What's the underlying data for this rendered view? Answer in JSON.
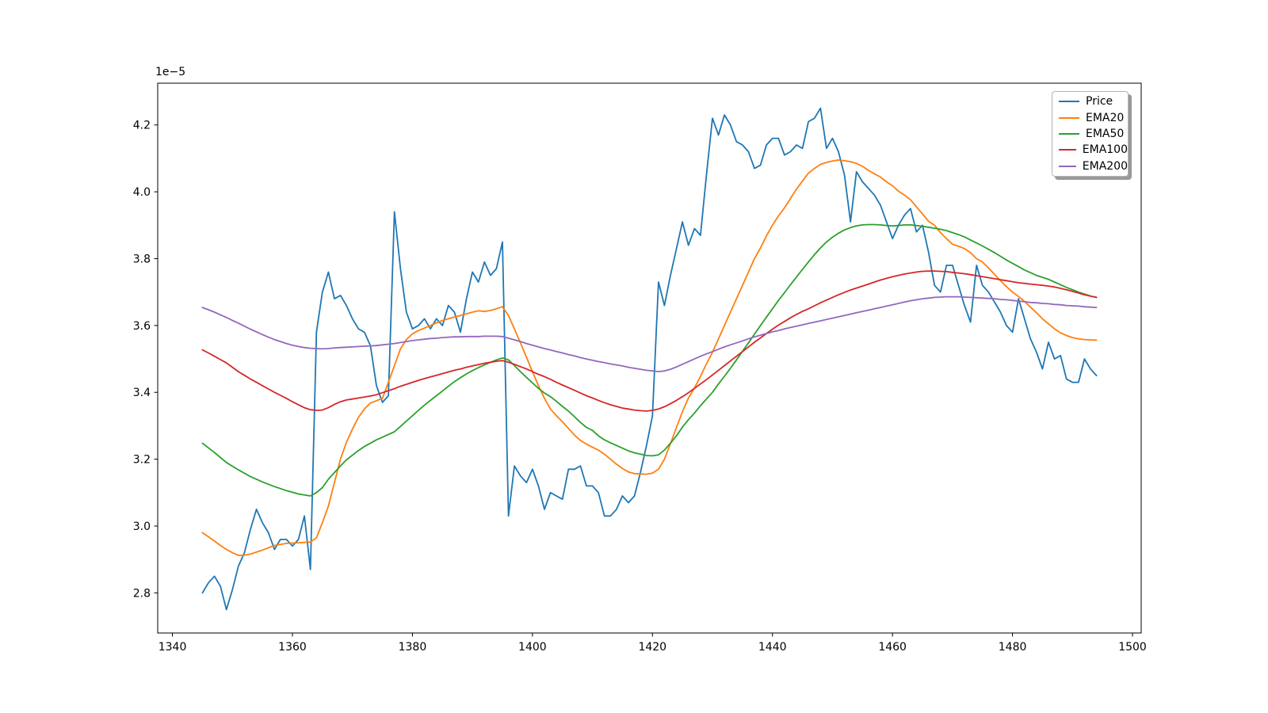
{
  "window": {
    "background": "#ffffff"
  },
  "chart_data": {
    "type": "line",
    "title": "",
    "xlabel": "",
    "ylabel": "",
    "grid": false,
    "x_axis": {
      "ticks": [
        1340,
        1360,
        1380,
        1400,
        1420,
        1440,
        1460,
        1480,
        1500
      ],
      "range": [
        1337.55,
        1501.45
      ]
    },
    "y_axis": {
      "ticks": [
        2.8,
        3.0,
        3.2,
        3.4,
        3.6,
        3.8,
        4.0,
        4.2
      ],
      "range": [
        2.68,
        4.325
      ],
      "offset_label": "1e−5"
    },
    "legend": {
      "position": "upper right",
      "entries": [
        "Price",
        "EMA20",
        "EMA50",
        "EMA100",
        "EMA200"
      ]
    },
    "x_start": 1345,
    "x_step": 1,
    "series": [
      {
        "name": "Price",
        "color": "#1f77b4",
        "values": [
          2.8,
          2.83,
          2.85,
          2.82,
          2.75,
          2.81,
          2.88,
          2.92,
          2.99,
          3.05,
          3.01,
          2.98,
          2.93,
          2.96,
          2.96,
          2.94,
          2.96,
          3.03,
          2.87,
          3.58,
          3.7,
          3.76,
          3.68,
          3.69,
          3.66,
          3.62,
          3.59,
          3.58,
          3.54,
          3.42,
          3.37,
          3.39,
          3.94,
          3.77,
          3.64,
          3.59,
          3.6,
          3.62,
          3.59,
          3.62,
          3.6,
          3.66,
          3.64,
          3.58,
          3.68,
          3.76,
          3.73,
          3.79,
          3.75,
          3.77,
          3.85,
          3.03,
          3.18,
          3.15,
          3.13,
          3.17,
          3.12,
          3.05,
          3.1,
          3.09,
          3.08,
          3.17,
          3.17,
          3.18,
          3.12,
          3.12,
          3.1,
          3.03,
          3.03,
          3.05,
          3.09,
          3.07,
          3.09,
          3.16,
          3.24,
          3.33,
          3.73,
          3.66,
          3.75,
          3.83,
          3.91,
          3.84,
          3.89,
          3.87,
          4.05,
          4.22,
          4.17,
          4.23,
          4.2,
          4.15,
          4.14,
          4.12,
          4.07,
          4.08,
          4.14,
          4.16,
          4.16,
          4.11,
          4.12,
          4.14,
          4.13,
          4.21,
          4.22,
          4.25,
          4.13,
          4.16,
          4.12,
          4.05,
          3.91,
          4.06,
          4.03,
          4.01,
          3.99,
          3.96,
          3.91,
          3.86,
          3.9,
          3.93,
          3.95,
          3.88,
          3.9,
          3.82,
          3.72,
          3.7,
          3.78,
          3.78,
          3.72,
          3.66,
          3.61,
          3.78,
          3.72,
          3.7,
          3.67,
          3.64,
          3.6,
          3.58,
          3.68,
          3.62,
          3.56,
          3.52,
          3.47,
          3.55,
          3.5,
          3.51,
          3.44,
          3.43,
          3.43,
          3.5,
          3.47,
          3.45
        ]
      },
      {
        "name": "EMA20",
        "color": "#ff7f0e",
        "values": [
          2.98,
          2.968,
          2.955,
          2.942,
          2.93,
          2.92,
          2.912,
          2.913,
          2.916,
          2.922,
          2.928,
          2.935,
          2.942,
          2.945,
          2.948,
          2.949,
          2.95,
          2.951,
          2.952,
          2.965,
          3.01,
          3.06,
          3.13,
          3.2,
          3.25,
          3.29,
          3.325,
          3.35,
          3.368,
          3.375,
          3.382,
          3.43,
          3.48,
          3.53,
          3.558,
          3.575,
          3.585,
          3.592,
          3.6,
          3.608,
          3.615,
          3.62,
          3.625,
          3.63,
          3.635,
          3.64,
          3.644,
          3.642,
          3.645,
          3.65,
          3.656,
          3.63,
          3.59,
          3.548,
          3.505,
          3.462,
          3.42,
          3.382,
          3.35,
          3.33,
          3.312,
          3.292,
          3.272,
          3.256,
          3.245,
          3.236,
          3.227,
          3.215,
          3.2,
          3.185,
          3.172,
          3.162,
          3.157,
          3.156,
          3.155,
          3.158,
          3.17,
          3.2,
          3.246,
          3.295,
          3.342,
          3.383,
          3.413,
          3.448,
          3.485,
          3.52,
          3.56,
          3.6,
          3.64,
          3.68,
          3.72,
          3.76,
          3.8,
          3.832,
          3.868,
          3.9,
          3.928,
          3.952,
          3.98,
          4.008,
          4.032,
          4.056,
          4.07,
          4.082,
          4.088,
          4.092,
          4.095,
          4.093,
          4.09,
          4.085,
          4.076,
          4.064,
          4.054,
          4.044,
          4.03,
          4.018,
          4.002,
          3.99,
          3.976,
          3.955,
          3.934,
          3.912,
          3.9,
          3.878,
          3.86,
          3.843,
          3.837,
          3.83,
          3.818,
          3.8,
          3.79,
          3.772,
          3.753,
          3.734,
          3.716,
          3.7,
          3.687,
          3.672,
          3.655,
          3.638,
          3.62,
          3.605,
          3.59,
          3.578,
          3.57,
          3.564,
          3.56,
          3.558,
          3.557,
          3.556
        ]
      },
      {
        "name": "EMA50",
        "color": "#2ca02c",
        "values": [
          3.248,
          3.234,
          3.22,
          3.205,
          3.19,
          3.179,
          3.168,
          3.158,
          3.148,
          3.14,
          3.132,
          3.125,
          3.118,
          3.112,
          3.106,
          3.101,
          3.096,
          3.093,
          3.09,
          3.1,
          3.115,
          3.14,
          3.16,
          3.18,
          3.198,
          3.212,
          3.226,
          3.238,
          3.248,
          3.258,
          3.266,
          3.274,
          3.282,
          3.298,
          3.314,
          3.33,
          3.346,
          3.362,
          3.376,
          3.39,
          3.404,
          3.418,
          3.432,
          3.444,
          3.455,
          3.465,
          3.474,
          3.482,
          3.49,
          3.497,
          3.503,
          3.497,
          3.48,
          3.462,
          3.445,
          3.428,
          3.412,
          3.398,
          3.387,
          3.373,
          3.358,
          3.344,
          3.327,
          3.31,
          3.295,
          3.286,
          3.27,
          3.258,
          3.249,
          3.241,
          3.233,
          3.225,
          3.219,
          3.215,
          3.211,
          3.21,
          3.213,
          3.227,
          3.248,
          3.27,
          3.296,
          3.318,
          3.338,
          3.36,
          3.38,
          3.4,
          3.425,
          3.448,
          3.472,
          3.497,
          3.523,
          3.548,
          3.574,
          3.6,
          3.625,
          3.65,
          3.675,
          3.698,
          3.722,
          3.745,
          3.768,
          3.79,
          3.812,
          3.832,
          3.85,
          3.864,
          3.876,
          3.886,
          3.893,
          3.898,
          3.901,
          3.902,
          3.902,
          3.901,
          3.899,
          3.898,
          3.899,
          3.901,
          3.901,
          3.899,
          3.897,
          3.894,
          3.891,
          3.888,
          3.884,
          3.878,
          3.872,
          3.865,
          3.856,
          3.847,
          3.838,
          3.828,
          3.818,
          3.807,
          3.796,
          3.786,
          3.776,
          3.766,
          3.758,
          3.75,
          3.744,
          3.738,
          3.73,
          3.722,
          3.714,
          3.707,
          3.7,
          3.694,
          3.688,
          3.684
        ]
      },
      {
        "name": "EMA100",
        "color": "#d62728",
        "values": [
          3.527,
          3.518,
          3.508,
          3.498,
          3.488,
          3.475,
          3.462,
          3.451,
          3.44,
          3.43,
          3.42,
          3.41,
          3.4,
          3.391,
          3.382,
          3.372,
          3.363,
          3.354,
          3.348,
          3.346,
          3.347,
          3.354,
          3.364,
          3.372,
          3.377,
          3.38,
          3.383,
          3.386,
          3.389,
          3.393,
          3.399,
          3.405,
          3.411,
          3.418,
          3.424,
          3.43,
          3.436,
          3.441,
          3.446,
          3.451,
          3.456,
          3.461,
          3.466,
          3.47,
          3.475,
          3.479,
          3.483,
          3.487,
          3.49,
          3.493,
          3.495,
          3.49,
          3.484,
          3.477,
          3.47,
          3.462,
          3.454,
          3.447,
          3.439,
          3.43,
          3.422,
          3.414,
          3.406,
          3.398,
          3.39,
          3.383,
          3.376,
          3.369,
          3.363,
          3.358,
          3.353,
          3.35,
          3.347,
          3.345,
          3.344,
          3.346,
          3.35,
          3.357,
          3.366,
          3.376,
          3.387,
          3.399,
          3.412,
          3.425,
          3.438,
          3.452,
          3.466,
          3.48,
          3.494,
          3.508,
          3.522,
          3.536,
          3.55,
          3.563,
          3.576,
          3.589,
          3.601,
          3.612,
          3.623,
          3.633,
          3.642,
          3.65,
          3.659,
          3.668,
          3.676,
          3.684,
          3.692,
          3.699,
          3.706,
          3.712,
          3.718,
          3.724,
          3.73,
          3.736,
          3.741,
          3.746,
          3.75,
          3.754,
          3.757,
          3.76,
          3.762,
          3.763,
          3.763,
          3.762,
          3.761,
          3.759,
          3.757,
          3.755,
          3.752,
          3.749,
          3.746,
          3.743,
          3.74,
          3.737,
          3.734,
          3.731,
          3.728,
          3.726,
          3.724,
          3.722,
          3.72,
          3.718,
          3.715,
          3.711,
          3.707,
          3.702,
          3.697,
          3.692,
          3.688,
          3.684
        ]
      },
      {
        "name": "EMA200",
        "color": "#9467bd",
        "values": [
          3.654,
          3.647,
          3.64,
          3.632,
          3.624,
          3.615,
          3.607,
          3.598,
          3.589,
          3.581,
          3.573,
          3.565,
          3.558,
          3.552,
          3.546,
          3.541,
          3.537,
          3.534,
          3.532,
          3.531,
          3.53,
          3.531,
          3.533,
          3.534,
          3.535,
          3.536,
          3.537,
          3.538,
          3.539,
          3.54,
          3.542,
          3.544,
          3.546,
          3.549,
          3.552,
          3.555,
          3.557,
          3.559,
          3.561,
          3.562,
          3.564,
          3.565,
          3.566,
          3.566,
          3.567,
          3.567,
          3.567,
          3.568,
          3.568,
          3.568,
          3.567,
          3.562,
          3.557,
          3.552,
          3.546,
          3.541,
          3.536,
          3.531,
          3.527,
          3.522,
          3.518,
          3.513,
          3.509,
          3.504,
          3.5,
          3.496,
          3.492,
          3.489,
          3.485,
          3.482,
          3.479,
          3.475,
          3.472,
          3.469,
          3.466,
          3.464,
          3.462,
          3.464,
          3.469,
          3.476,
          3.484,
          3.492,
          3.5,
          3.508,
          3.515,
          3.522,
          3.529,
          3.536,
          3.542,
          3.548,
          3.554,
          3.56,
          3.566,
          3.571,
          3.576,
          3.581,
          3.585,
          3.59,
          3.594,
          3.598,
          3.602,
          3.606,
          3.61,
          3.614,
          3.618,
          3.622,
          3.626,
          3.63,
          3.634,
          3.638,
          3.642,
          3.646,
          3.65,
          3.654,
          3.658,
          3.662,
          3.666,
          3.67,
          3.674,
          3.677,
          3.68,
          3.682,
          3.684,
          3.685,
          3.686,
          3.686,
          3.686,
          3.685,
          3.684,
          3.683,
          3.682,
          3.681,
          3.68,
          3.678,
          3.677,
          3.675,
          3.673,
          3.671,
          3.669,
          3.668,
          3.666,
          3.665,
          3.663,
          3.662,
          3.66,
          3.659,
          3.658,
          3.656,
          3.655,
          3.654
        ]
      }
    ]
  }
}
